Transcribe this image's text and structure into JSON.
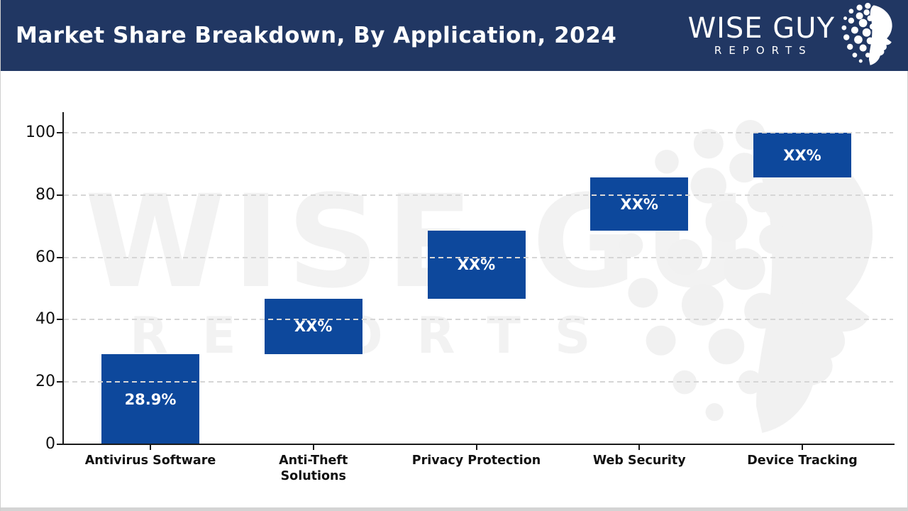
{
  "header": {
    "title": "Market Share Breakdown, By Application, 2024",
    "bg_color": "#213763",
    "logo": {
      "line1": "WISE GUY",
      "line2": "REPORTS"
    }
  },
  "watermark": {
    "line1": "WISE GUY",
    "line2": "REPORTS"
  },
  "chart_data": {
    "type": "bar",
    "subtype": "waterfall-segments",
    "title": "Market Share Breakdown, By Application, 2024",
    "xlabel": "",
    "ylabel": "",
    "ylim": [
      0,
      106
    ],
    "y_ticks": [
      0,
      20,
      40,
      60,
      80,
      100
    ],
    "grid": "dashed-horizontal",
    "bar_color": "#0d489c",
    "categories": [
      "Antivirus Software",
      "Anti-Theft Solutions",
      "Privacy Protection",
      "Web Security",
      "Device Tracking"
    ],
    "segments": [
      {
        "category_lines": [
          "Antivirus Software"
        ],
        "start": 0,
        "end": 28.9,
        "value": 28.9,
        "label": "28.9%"
      },
      {
        "category_lines": [
          "Anti-Theft",
          "Solutions"
        ],
        "start": 28.9,
        "end": 46.7,
        "value": 17.8,
        "label": "XX%"
      },
      {
        "category_lines": [
          "Privacy Protection"
        ],
        "start": 46.7,
        "end": 68.5,
        "value": 21.8,
        "label": "XX%"
      },
      {
        "category_lines": [
          "Web Security"
        ],
        "start": 68.5,
        "end": 85.6,
        "value": 17.1,
        "label": "XX%"
      },
      {
        "category_lines": [
          "Device Tracking"
        ],
        "start": 85.6,
        "end": 100,
        "value": 14.4,
        "label": "XX%"
      }
    ]
  }
}
